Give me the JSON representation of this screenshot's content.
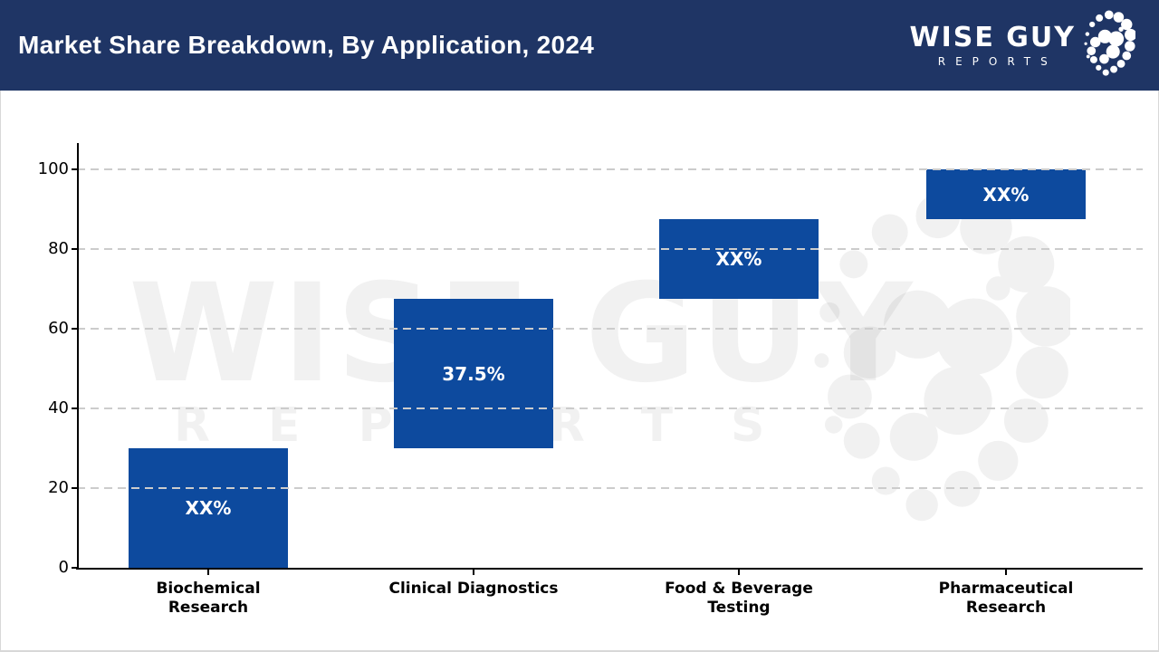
{
  "header": {
    "bg_color": "#1f3565",
    "title": "Market Share Breakdown, By Application, 2024",
    "logo": {
      "wordmark": "WISE GUY",
      "sub": "REPORTS"
    }
  },
  "watermark": {
    "line1": "WISE GUY",
    "line2": "REPORTS"
  },
  "chart_data": {
    "type": "bar",
    "subtype": "floating-waterfall",
    "title": "Market Share Breakdown, By Application, 2024",
    "categories": [
      "Biochemical Research",
      "Clinical Diagnostics",
      "Food & Beverage Testing",
      "Pharmaceutical Research"
    ],
    "segments": [
      {
        "category": "Biochemical Research",
        "start": 0,
        "end": 30,
        "label": "XX%"
      },
      {
        "category": "Clinical Diagnostics",
        "start": 30,
        "end": 67.5,
        "label": "37.5%"
      },
      {
        "category": "Food & Beverage Testing",
        "start": 67.5,
        "end": 87.5,
        "label": "XX%"
      },
      {
        "category": "Pharmaceutical Research",
        "start": 87.5,
        "end": 100,
        "label": "XX%"
      }
    ],
    "xlabel": "",
    "ylabel": "",
    "ylim": [
      0,
      100
    ],
    "yticks": [
      0,
      20,
      40,
      60,
      80,
      100
    ],
    "grid": true,
    "grid_style": "dashed",
    "legend": false,
    "colors": {
      "bar": "#0d4a9e",
      "bar_label": "#ffffff",
      "axis": "#000000",
      "gridline": "#cccccc",
      "tick_label": "#000000"
    }
  }
}
